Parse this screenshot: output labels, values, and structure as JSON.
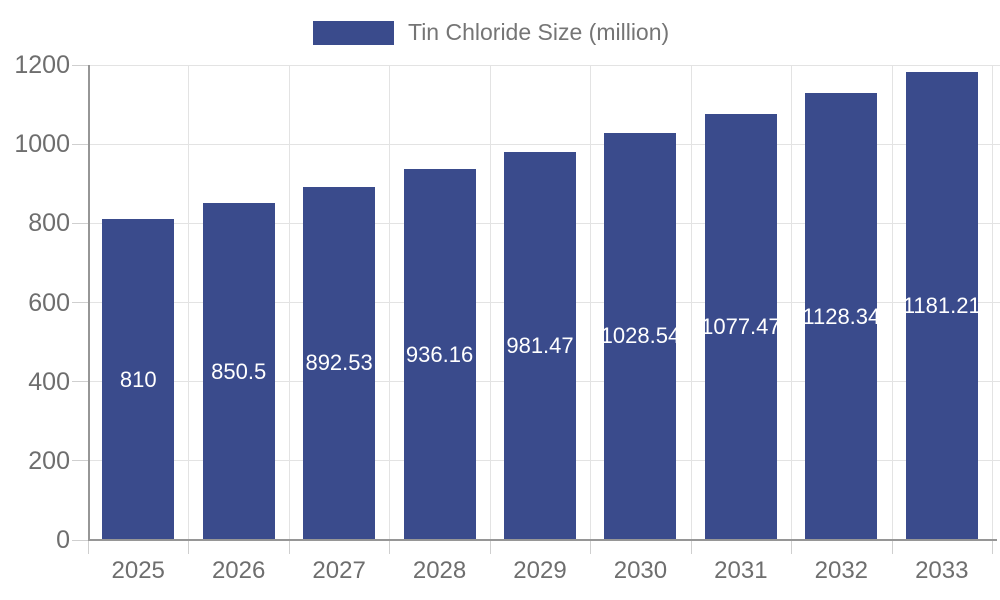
{
  "legend": {
    "label": "Tin Chloride Size (million)"
  },
  "colors": {
    "bar": "#3a4b8c",
    "axis_line": "#969696",
    "grid_line": "#e3e3e3",
    "tick": "#cfcfcf",
    "axis_label": "#6e6e6e",
    "legend_label": "#757575",
    "value_label": "#ffffff",
    "background": "#ffffff"
  },
  "chart_data": {
    "type": "bar",
    "title": "",
    "legend": "Tin Chloride Size (million)",
    "legend_position": "top",
    "categories": [
      "2025",
      "2026",
      "2027",
      "2028",
      "2029",
      "2030",
      "2031",
      "2032",
      "2033"
    ],
    "values": [
      810,
      850.5,
      892.53,
      936.16,
      981.47,
      1028.54,
      1077.47,
      1128.34,
      1181.21
    ],
    "value_labels": [
      "810",
      "850.5",
      "892.53",
      "936.16",
      "981.47",
      "1028.54",
      "1077.47",
      "1128.34",
      "1181.21"
    ],
    "xlabel": "",
    "ylabel": "",
    "ylim": [
      0,
      1200
    ],
    "yticks": [
      0,
      200,
      400,
      600,
      800,
      1000,
      1200
    ],
    "grid": true
  }
}
